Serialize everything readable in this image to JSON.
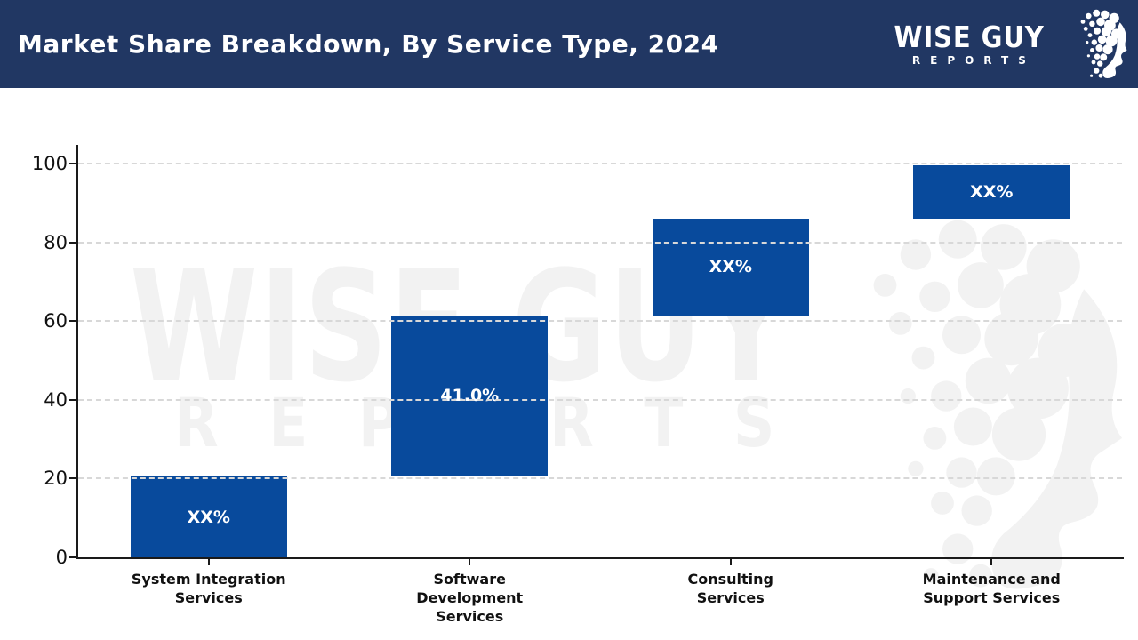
{
  "header": {
    "title": "Market Share Breakdown, By Service Type, 2024",
    "bg_color": "#213763",
    "brand": {
      "name": "WISE GUY",
      "subtitle": "REPORTS"
    }
  },
  "watermark": {
    "line1": "WISE GUY",
    "line2": "R E P O R T S",
    "color": "#f2f2f2"
  },
  "chart_data": {
    "type": "bar",
    "subtype": "waterfall",
    "title": "Market Share Breakdown, By Service Type, 2024",
    "categories": [
      "System Integration\nServices",
      "Software\nDevelopment\nServices",
      "Consulting\nServices",
      "Maintenance and\nSupport Services"
    ],
    "values": [
      20.5,
      41.0,
      24.5,
      13.5
    ],
    "cumulative_start": [
      0,
      20.5,
      61.5,
      86.0
    ],
    "cumulative_end": [
      20.5,
      61.5,
      86.0,
      99.5
    ],
    "bar_labels": [
      "XX%",
      "41.0%",
      "XX%",
      "XX%"
    ],
    "ylim": [
      0,
      100
    ],
    "yticks": [
      0,
      20,
      40,
      60,
      80,
      100
    ],
    "xlabel": "",
    "ylabel": "",
    "grid": "horizontal-dashed",
    "legend": "none",
    "bar_color": "#084a9c",
    "label_color": "#ffffff"
  }
}
